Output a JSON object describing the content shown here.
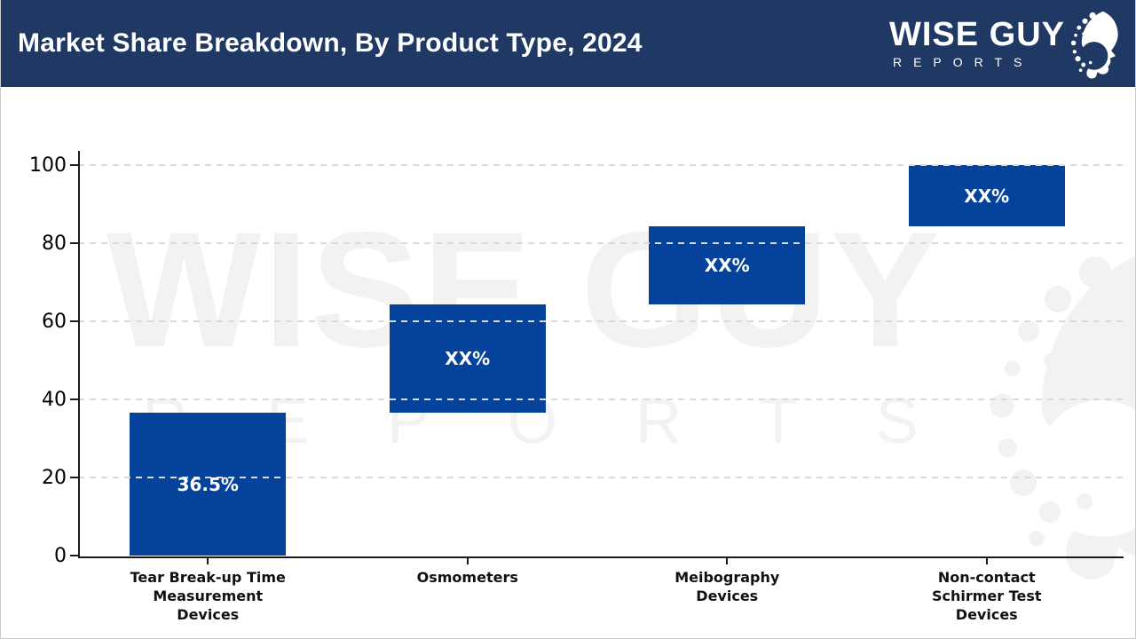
{
  "header": {
    "title": "Market Share Breakdown, By Product Type, 2024",
    "logo": {
      "line1": "WISE GUY",
      "line2": "REPORTS"
    }
  },
  "watermark": {
    "line1": "WISE GUY",
    "line2": "REPORTS"
  },
  "colors": {
    "header_bg": "#1F3864",
    "bar": "#05429B",
    "grid": "#DADADA",
    "axis": "#1A1A1A",
    "watermark": "#F2F2F2",
    "bar_label_text": "#FFFFFF",
    "frame_border": "#CCCCCC"
  },
  "chart_data": {
    "type": "bar",
    "subtype": "waterfall",
    "title": "Market Share Breakdown, By Product Type, 2024",
    "categories": [
      "Tear Break-up Time\nMeasurement\nDevices",
      "Osmometers",
      "Meibography\nDevices",
      "Non-contact\nSchirmer Test\nDevices"
    ],
    "series": [
      {
        "name": "Market share (%)",
        "bar_start": [
          0,
          36.5,
          64.3,
          84.3
        ],
        "bar_end": [
          36.5,
          64.3,
          84.3,
          100
        ],
        "labels": [
          "36.5%",
          "XX%",
          "XX%",
          "XX%"
        ]
      }
    ],
    "xlabel": "",
    "ylabel": "",
    "ylim": [
      0,
      100
    ],
    "yticks": [
      0,
      20,
      40,
      60,
      80,
      100
    ],
    "grid": "horizontal-dashed",
    "legend": false,
    "bar_color": "#05429B"
  }
}
